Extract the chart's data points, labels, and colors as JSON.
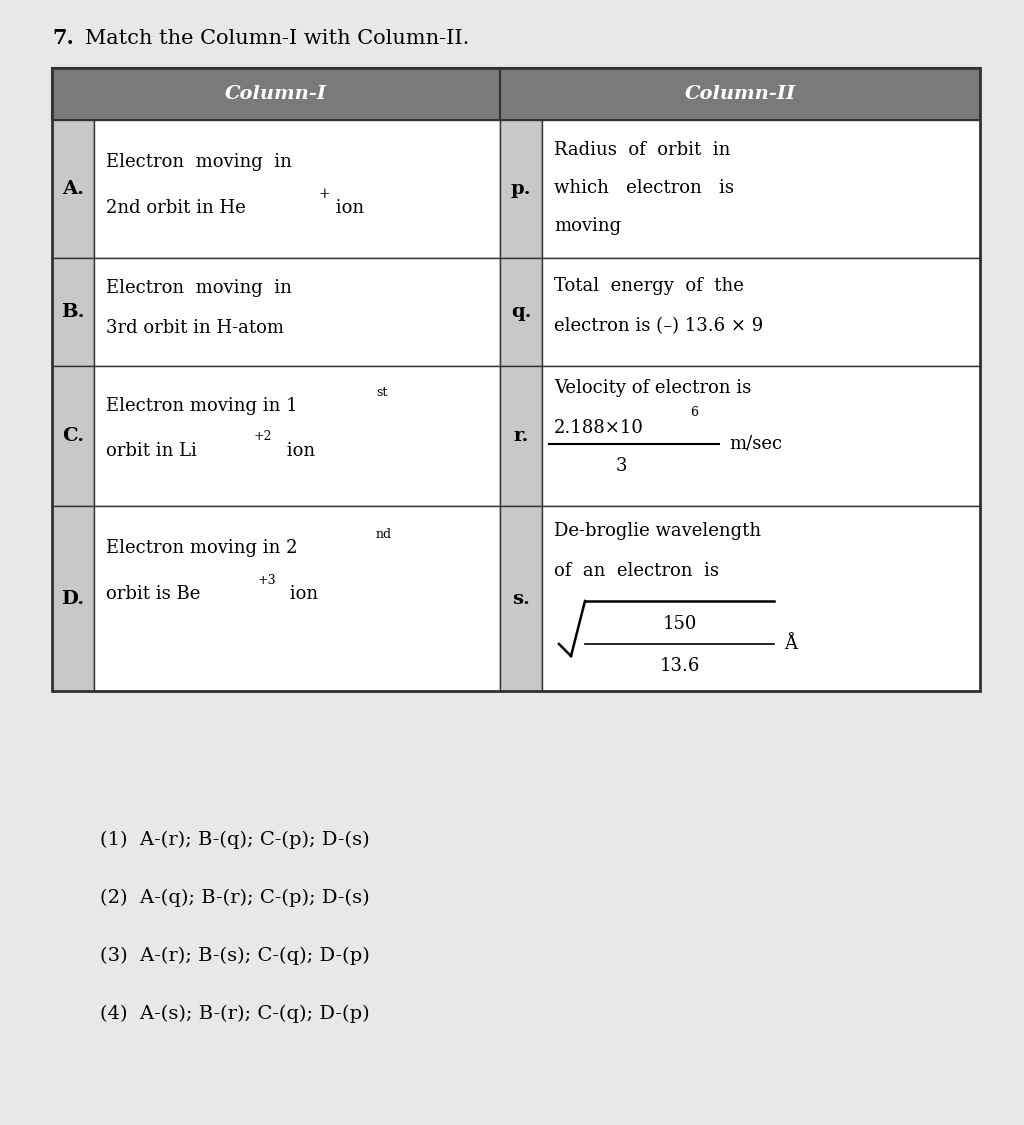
{
  "title_num": "7.",
  "title_text": "Match the Column-I with Column-II.",
  "header_bg": "#7a7a7a",
  "header_text_color": "#ffffff",
  "label_cell_bg": "#c8c8c8",
  "content_cell_bg": "#ffffff",
  "border_color": "#333333",
  "text_color": "#111111",
  "col1_header": "Column-I",
  "col2_header": "Column-II",
  "bg_color": "#e8e8e8",
  "figsize": [
    10.24,
    11.25
  ],
  "dpi": 100,
  "options": [
    "(1)  A-(r); B-(q); C-(p); D-(s)",
    "(2)  A-(q); B-(r); C-(p); D-(s)",
    "(3)  A-(r); B-(s); C-(q); D-(p)",
    "(4)  A-(s); B-(r); C-(q); D-(p)"
  ]
}
